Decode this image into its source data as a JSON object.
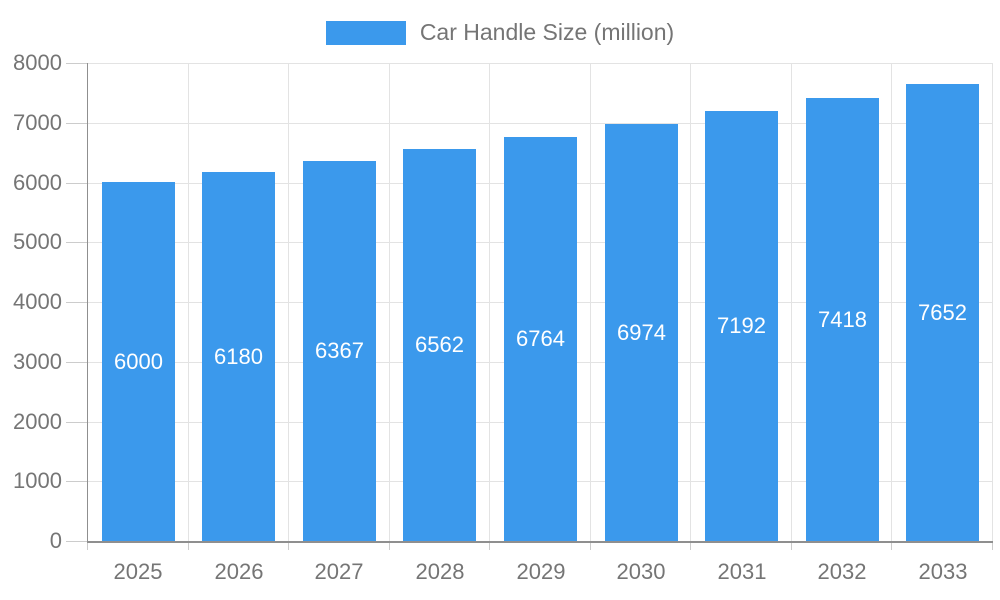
{
  "chart_data": {
    "type": "bar",
    "title": "",
    "legend_label": "Car Handle Size (million)",
    "legend_position": "top",
    "categories": [
      "2025",
      "2026",
      "2027",
      "2028",
      "2029",
      "2030",
      "2031",
      "2032",
      "2033"
    ],
    "values": [
      6000,
      6180,
      6367,
      6562,
      6764,
      6974,
      7192,
      7418,
      7652
    ],
    "value_labels_shown": true,
    "xlabel": "",
    "ylabel": "",
    "ylim": [
      0,
      8000
    ],
    "ytick_step": 1000,
    "yticks": [
      "0",
      "1000",
      "2000",
      "3000",
      "4000",
      "5000",
      "6000",
      "7000",
      "8000"
    ],
    "grid": true,
    "colors": {
      "bar": "#3B99EC",
      "grid": "#E3E3E3",
      "axis": "#8F8F8F",
      "tick": "#CCCCCC",
      "axis_text": "#757575",
      "value_text": "#FFFFFF",
      "background": "#FFFFFF"
    }
  }
}
